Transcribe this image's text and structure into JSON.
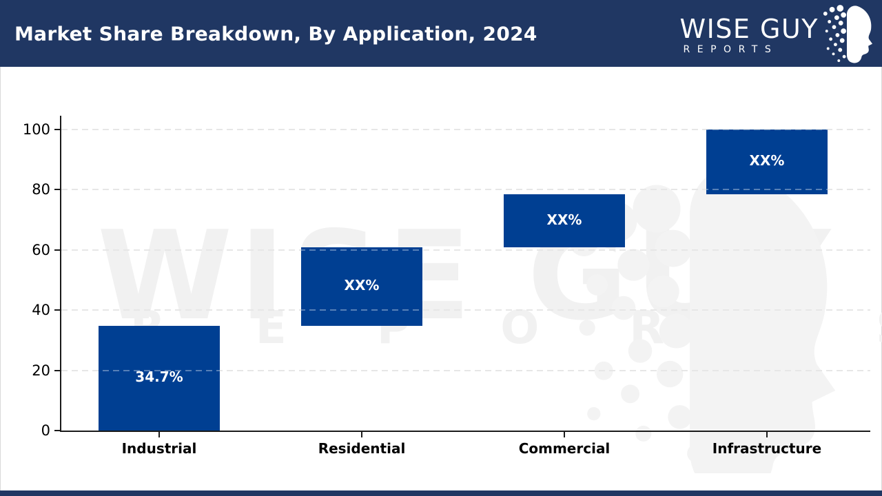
{
  "header": {
    "title": "Market Share Breakdown, By Application, 2024",
    "logo": {
      "line1": "WISE GUY",
      "line2": "REPORTS"
    }
  },
  "watermark": {
    "line1": "WISE GUY",
    "line2": "R E P O R T S"
  },
  "chart_data": {
    "type": "bar",
    "subtype": "waterfall",
    "title": "Market Share Breakdown, By Application, 2024",
    "unit": "%",
    "categories": [
      "Industrial",
      "Residential",
      "Commercial",
      "Infrastructure"
    ],
    "segments": [
      {
        "category": "Industrial",
        "start": 0,
        "end": 34.7,
        "value": 34.7,
        "label": "34.7%"
      },
      {
        "category": "Residential",
        "start": 34.7,
        "end": 60.9,
        "value": 26.2,
        "label": "XX%"
      },
      {
        "category": "Commercial",
        "start": 60.9,
        "end": 78.3,
        "value": 17.4,
        "label": "XX%"
      },
      {
        "category": "Infrastructure",
        "start": 78.3,
        "end": 100,
        "value": 21.7,
        "label": "XX%"
      }
    ],
    "yticks": [
      0,
      20,
      40,
      60,
      80,
      100
    ],
    "ylim": [
      0,
      105
    ],
    "xlabel": "",
    "ylabel": "",
    "grid": "dashed-horizontal",
    "legend": false
  },
  "colors": {
    "header_navy": "#203763",
    "bar_blue": "#003f92",
    "grid_gray": "#dadada",
    "axis_black": "#1a1a1a",
    "watermark_gray": "#f1f1f1",
    "title_white": "#ffffff"
  }
}
